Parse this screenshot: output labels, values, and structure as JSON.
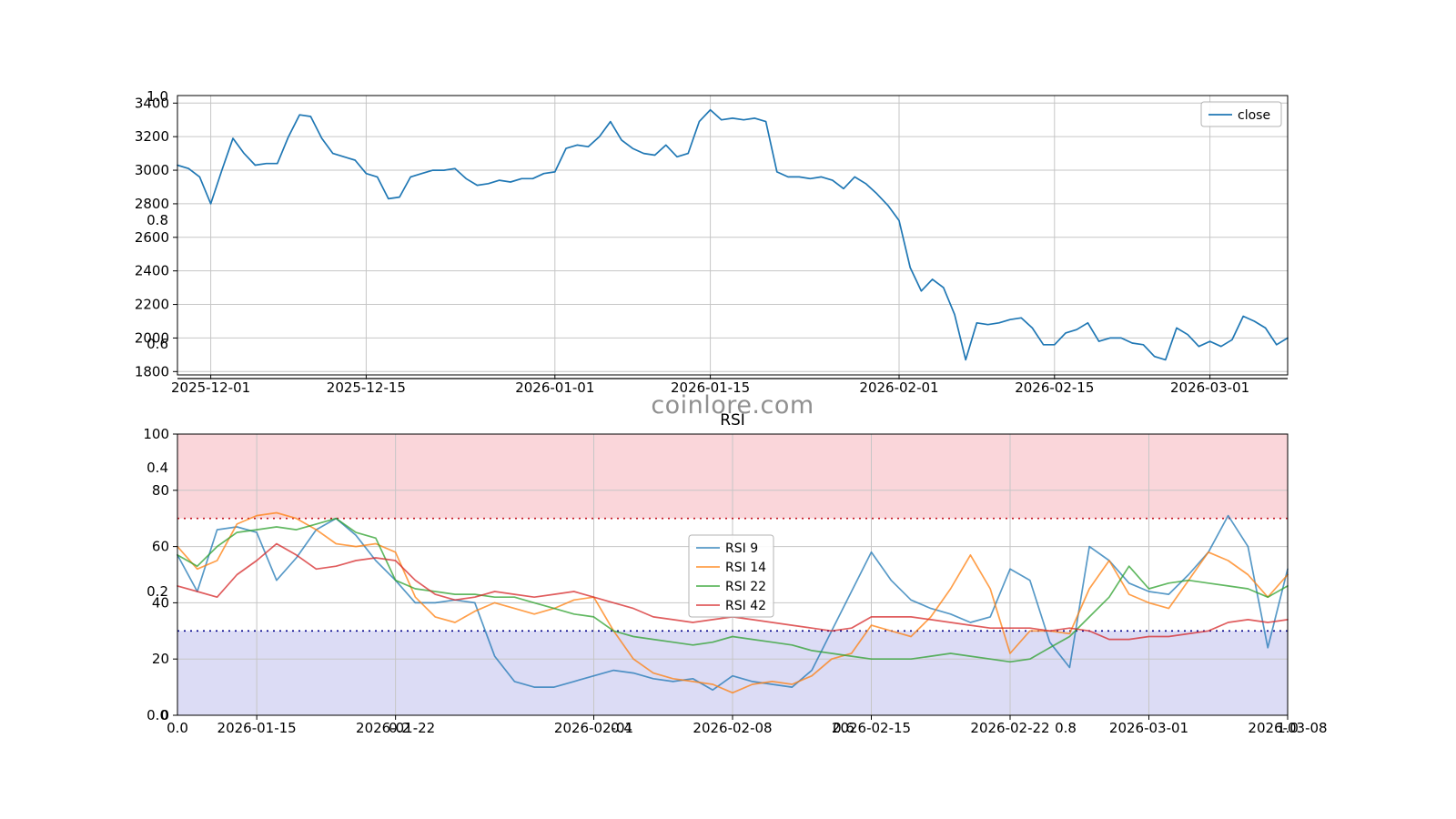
{
  "watermark": "coinlore.com",
  "overlay_axis": {
    "y_ticks": [
      "1.0",
      "0.8",
      "0.6",
      "0.4",
      "0.2",
      "0.0"
    ],
    "x_ticks": [
      "0.0",
      "0.2",
      "0.4",
      "0.6",
      "0.8",
      "1.0"
    ]
  },
  "chart_data": [
    {
      "type": "line",
      "name": "price",
      "title": "",
      "grid": true,
      "legend_position": "upper right",
      "x_start_date": "2025-11-28",
      "x_interval_days": 1,
      "x_tick_labels": [
        "2025-12-01",
        "2025-12-15",
        "2026-01-01",
        "2026-01-15",
        "2026-02-01",
        "2026-02-15",
        "2026-03-01"
      ],
      "x_tick_indices": [
        3,
        17,
        34,
        48,
        65,
        79,
        93
      ],
      "y_ticks": [
        1800,
        2000,
        2200,
        2400,
        2600,
        2800,
        3000,
        3200,
        3400
      ],
      "ylim": [
        1780,
        3445
      ],
      "legend": [
        {
          "label": "close",
          "color": "#1f77b4",
          "opacity": 1
        }
      ],
      "series": [
        {
          "name": "close",
          "color": "#1f77b4",
          "opacity": 1,
          "values": [
            3030,
            3010,
            2960,
            2800,
            3000,
            3190,
            3100,
            3030,
            3040,
            3040,
            3200,
            3330,
            3320,
            3190,
            3100,
            3080,
            3060,
            2980,
            2960,
            2830,
            2840,
            2960,
            2980,
            3000,
            3000,
            3010,
            2950,
            2910,
            2920,
            2940,
            2930,
            2950,
            2950,
            2980,
            2990,
            3130,
            3150,
            3140,
            3200,
            3290,
            3180,
            3130,
            3100,
            3090,
            3150,
            3080,
            3100,
            3290,
            3360,
            3300,
            3310,
            3300,
            3310,
            3290,
            2990,
            2960,
            2960,
            2950,
            2960,
            2940,
            2890,
            2960,
            2920,
            2860,
            2790,
            2700,
            2420,
            2280,
            2350,
            2300,
            2140,
            1870,
            2090,
            2080,
            2090,
            2110,
            2120,
            2060,
            1960,
            1960,
            2030,
            2050,
            2090,
            1980,
            2000,
            2000,
            1970,
            1960,
            1890,
            1870,
            2060,
            2020,
            1950,
            1980,
            1950,
            1990,
            2130,
            2100,
            2060,
            1960,
            2000
          ]
        }
      ]
    },
    {
      "type": "line",
      "name": "rsi",
      "title": "RSI",
      "grid": true,
      "legend_position": "center",
      "x_start_date": "2026-01-11",
      "x_interval_days": 1,
      "x_tick_labels": [
        "2026-01-15",
        "2026-01-22",
        "2026-02-01",
        "2026-02-08",
        "2026-02-15",
        "2026-02-22",
        "2026-03-01",
        "2026-03-08"
      ],
      "x_tick_indices": [
        4,
        11,
        21,
        28,
        35,
        42,
        49,
        56
      ],
      "y_ticks": [
        0,
        20,
        40,
        60,
        80,
        100
      ],
      "ylim": [
        0,
        100
      ],
      "bands": [
        {
          "name": "overbought",
          "from": 70,
          "to": 100,
          "color": "#fad6da"
        },
        {
          "name": "oversold",
          "from": 0,
          "to": 30,
          "color": "#dcdcf5"
        }
      ],
      "hlines": [
        {
          "name": "overbought-threshold-line",
          "y": 70,
          "color": "#c41421",
          "style": "dotted"
        },
        {
          "name": "oversold-threshold-line",
          "y": 30,
          "color": "#00008b",
          "style": "dotted"
        }
      ],
      "legend": [
        {
          "label": "RSI 9",
          "color": "#1f77b4",
          "opacity": 0.75
        },
        {
          "label": "RSI 14",
          "color": "#ff7f0e",
          "opacity": 0.75
        },
        {
          "label": "RSI 22",
          "color": "#2ca02c",
          "opacity": 0.75
        },
        {
          "label": "RSI 42",
          "color": "#d62728",
          "opacity": 0.75
        }
      ],
      "series": [
        {
          "name": "RSI 9",
          "color": "#1f77b4",
          "opacity": 0.75,
          "values": [
            57,
            44,
            66,
            67,
            65,
            48,
            56,
            66,
            70,
            64,
            55,
            48,
            40,
            40,
            41,
            40,
            21,
            12,
            10,
            10,
            12,
            14,
            16,
            15,
            13,
            12,
            13,
            9,
            14,
            12,
            11,
            10,
            16,
            30,
            44,
            58,
            48,
            41,
            38,
            36,
            33,
            35,
            52,
            48,
            26,
            17,
            60,
            55,
            47,
            44,
            43,
            50,
            58,
            71,
            60,
            24,
            52
          ]
        },
        {
          "name": "RSI 14",
          "color": "#ff7f0e",
          "opacity": 0.75,
          "values": [
            60,
            52,
            55,
            68,
            71,
            72,
            70,
            66,
            61,
            60,
            61,
            58,
            42,
            35,
            33,
            37,
            40,
            38,
            36,
            38,
            41,
            42,
            30,
            20,
            15,
            13,
            12,
            11,
            8,
            11,
            12,
            11,
            14,
            20,
            22,
            32,
            30,
            28,
            35,
            45,
            57,
            45,
            22,
            30,
            30,
            29,
            45,
            55,
            43,
            40,
            38,
            48,
            58,
            55,
            50,
            42,
            50
          ]
        },
        {
          "name": "RSI 22",
          "color": "#2ca02c",
          "opacity": 0.75,
          "values": [
            57,
            53,
            60,
            65,
            66,
            67,
            66,
            68,
            70,
            65,
            63,
            48,
            45,
            44,
            43,
            43,
            42,
            42,
            40,
            38,
            36,
            35,
            30,
            28,
            27,
            26,
            25,
            26,
            28,
            27,
            26,
            25,
            23,
            22,
            21,
            20,
            20,
            20,
            21,
            22,
            21,
            20,
            19,
            20,
            24,
            28,
            35,
            42,
            53,
            45,
            47,
            48,
            47,
            46,
            45,
            42,
            46
          ]
        },
        {
          "name": "RSI 42",
          "color": "#d62728",
          "opacity": 0.75,
          "values": [
            46,
            44,
            42,
            50,
            55,
            61,
            57,
            52,
            53,
            55,
            56,
            55,
            48,
            43,
            41,
            42,
            44,
            43,
            42,
            43,
            44,
            42,
            40,
            38,
            35,
            34,
            33,
            34,
            35,
            34,
            33,
            32,
            31,
            30,
            31,
            35,
            35,
            35,
            34,
            33,
            32,
            31,
            31,
            31,
            30,
            31,
            30,
            27,
            27,
            28,
            28,
            29,
            30,
            33,
            34,
            33,
            34
          ]
        }
      ]
    }
  ]
}
